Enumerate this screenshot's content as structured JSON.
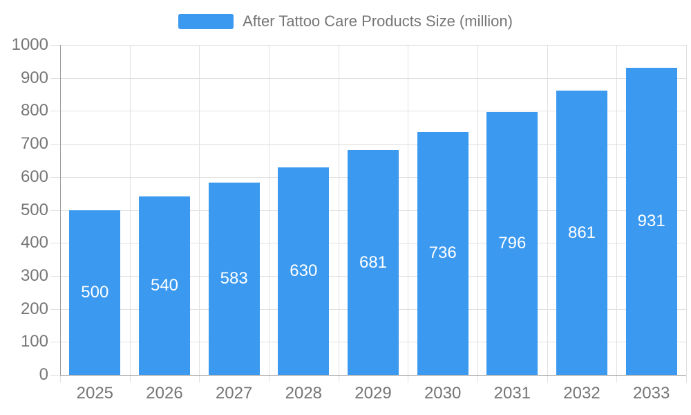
{
  "legend": {
    "label": "After Tattoo Care Products Size (million)"
  },
  "chart_data": {
    "type": "bar",
    "title": "After Tattoo Care Products Size (million)",
    "categories": [
      "2025",
      "2026",
      "2027",
      "2028",
      "2029",
      "2030",
      "2031",
      "2032",
      "2033"
    ],
    "values": [
      500,
      540,
      583,
      630,
      681,
      736,
      796,
      861,
      931
    ],
    "series_name": "After Tattoo Care Products Size (million)",
    "xlabel": "",
    "ylabel": "",
    "ylim": [
      0,
      1000
    ],
    "ytick_step": 100,
    "grid": true,
    "legend_position": "top-center",
    "data_labels": "inside-center",
    "colors": {
      "bar": "#3B99F0",
      "bar_value_text": "#ffffff",
      "axis_line": "#999999",
      "grid_line": "#e0e0e0",
      "tick_line": "#e0e0e0",
      "axis_text": "#757575",
      "legend_text": "#757575",
      "background": "#ffffff"
    }
  }
}
